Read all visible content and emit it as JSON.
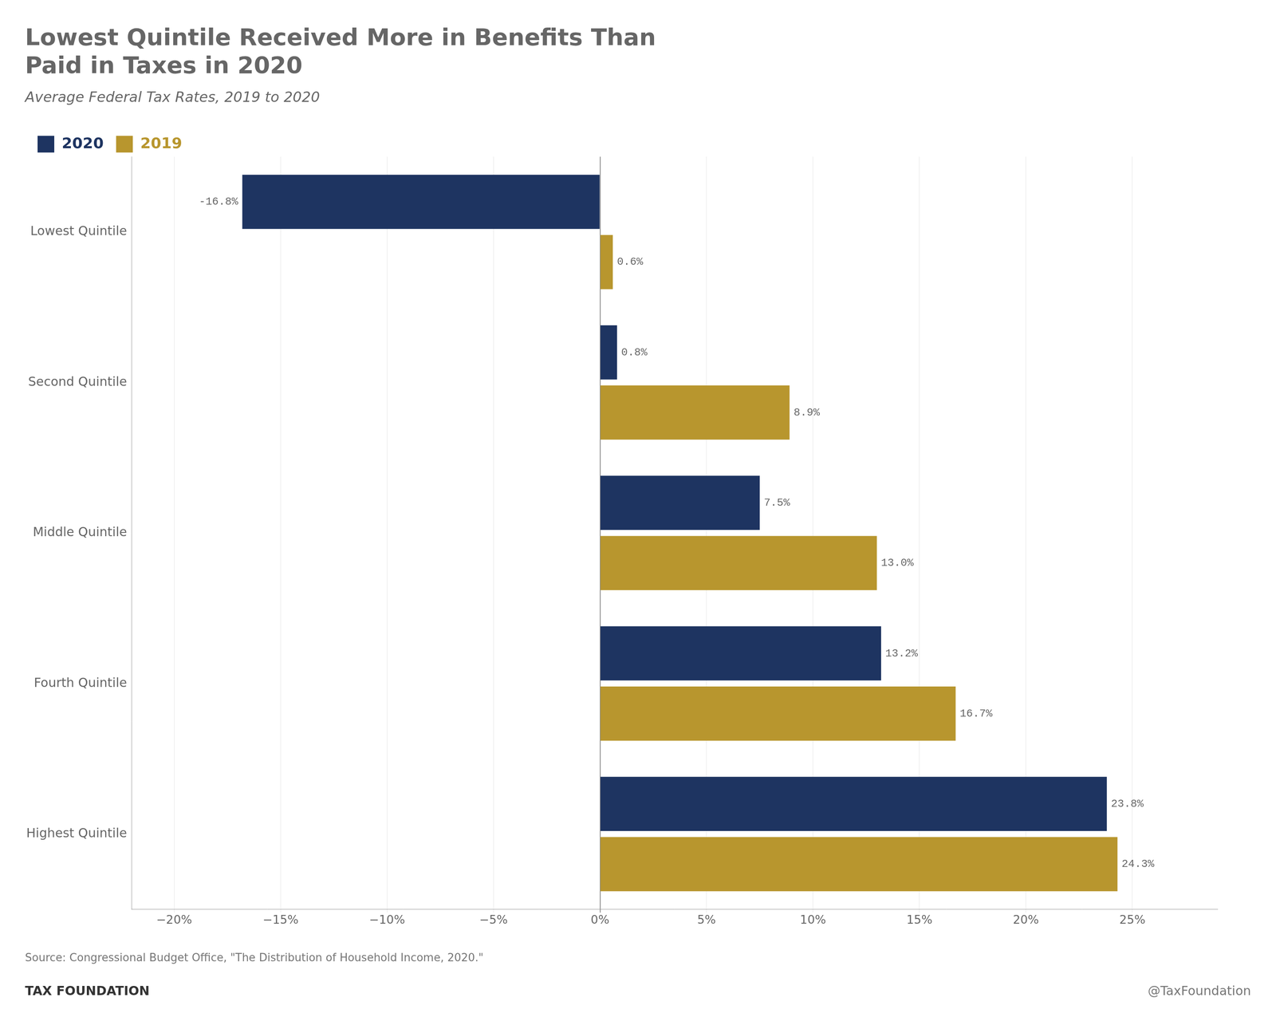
{
  "chart_data": {
    "type": "bar",
    "orientation": "horizontal",
    "title": "Lowest Quintile Received More in Benefits Than\nPaid in Taxes in 2020",
    "subtitle": "Average Federal Tax Rates, 2019 to 2020",
    "annotations": [
      "Source: Congressional Budget Office, \"The Distribution of Household Income, 2020.\"",
      "TAX FOUNDATION",
      "@TaxFoundation"
    ],
    "categories": [
      "Highest Quintile",
      "Fourth Quintile",
      "Middle Quintile",
      "Second Quintile",
      "Lowest Quintile"
    ],
    "series": [
      {
        "name": "2020",
        "color": "#1e3461",
        "values": [
          23.8,
          13.2,
          7.5,
          0.8,
          -16.8
        ],
        "value_labels": [
          "23.8%",
          "13.2%",
          "7.5%",
          "0.8%",
          "-16.8%"
        ]
      },
      {
        "name": "2019",
        "color": "#b8962e",
        "values": [
          24.3,
          16.7,
          13.0,
          8.9,
          0.6
        ],
        "value_labels": [
          "24.3%",
          "16.7%",
          "13.0%",
          "8.9%",
          "0.6%"
        ]
      }
    ],
    "xlim": [
      -22,
      29
    ],
    "xticks": [
      {
        "value": -20,
        "label": "−20%"
      },
      {
        "value": -15,
        "label": "−15%"
      },
      {
        "value": -10,
        "label": "−10%"
      },
      {
        "value": -5,
        "label": "−5%"
      },
      {
        "value": 0,
        "label": "0%"
      },
      {
        "value": 5,
        "label": "5%"
      },
      {
        "value": 10,
        "label": "10%"
      },
      {
        "value": 15,
        "label": "15%"
      },
      {
        "value": 20,
        "label": "20%"
      },
      {
        "value": 25,
        "label": "25%"
      }
    ],
    "grid": true,
    "legend": "upper left",
    "data_labels": true
  }
}
